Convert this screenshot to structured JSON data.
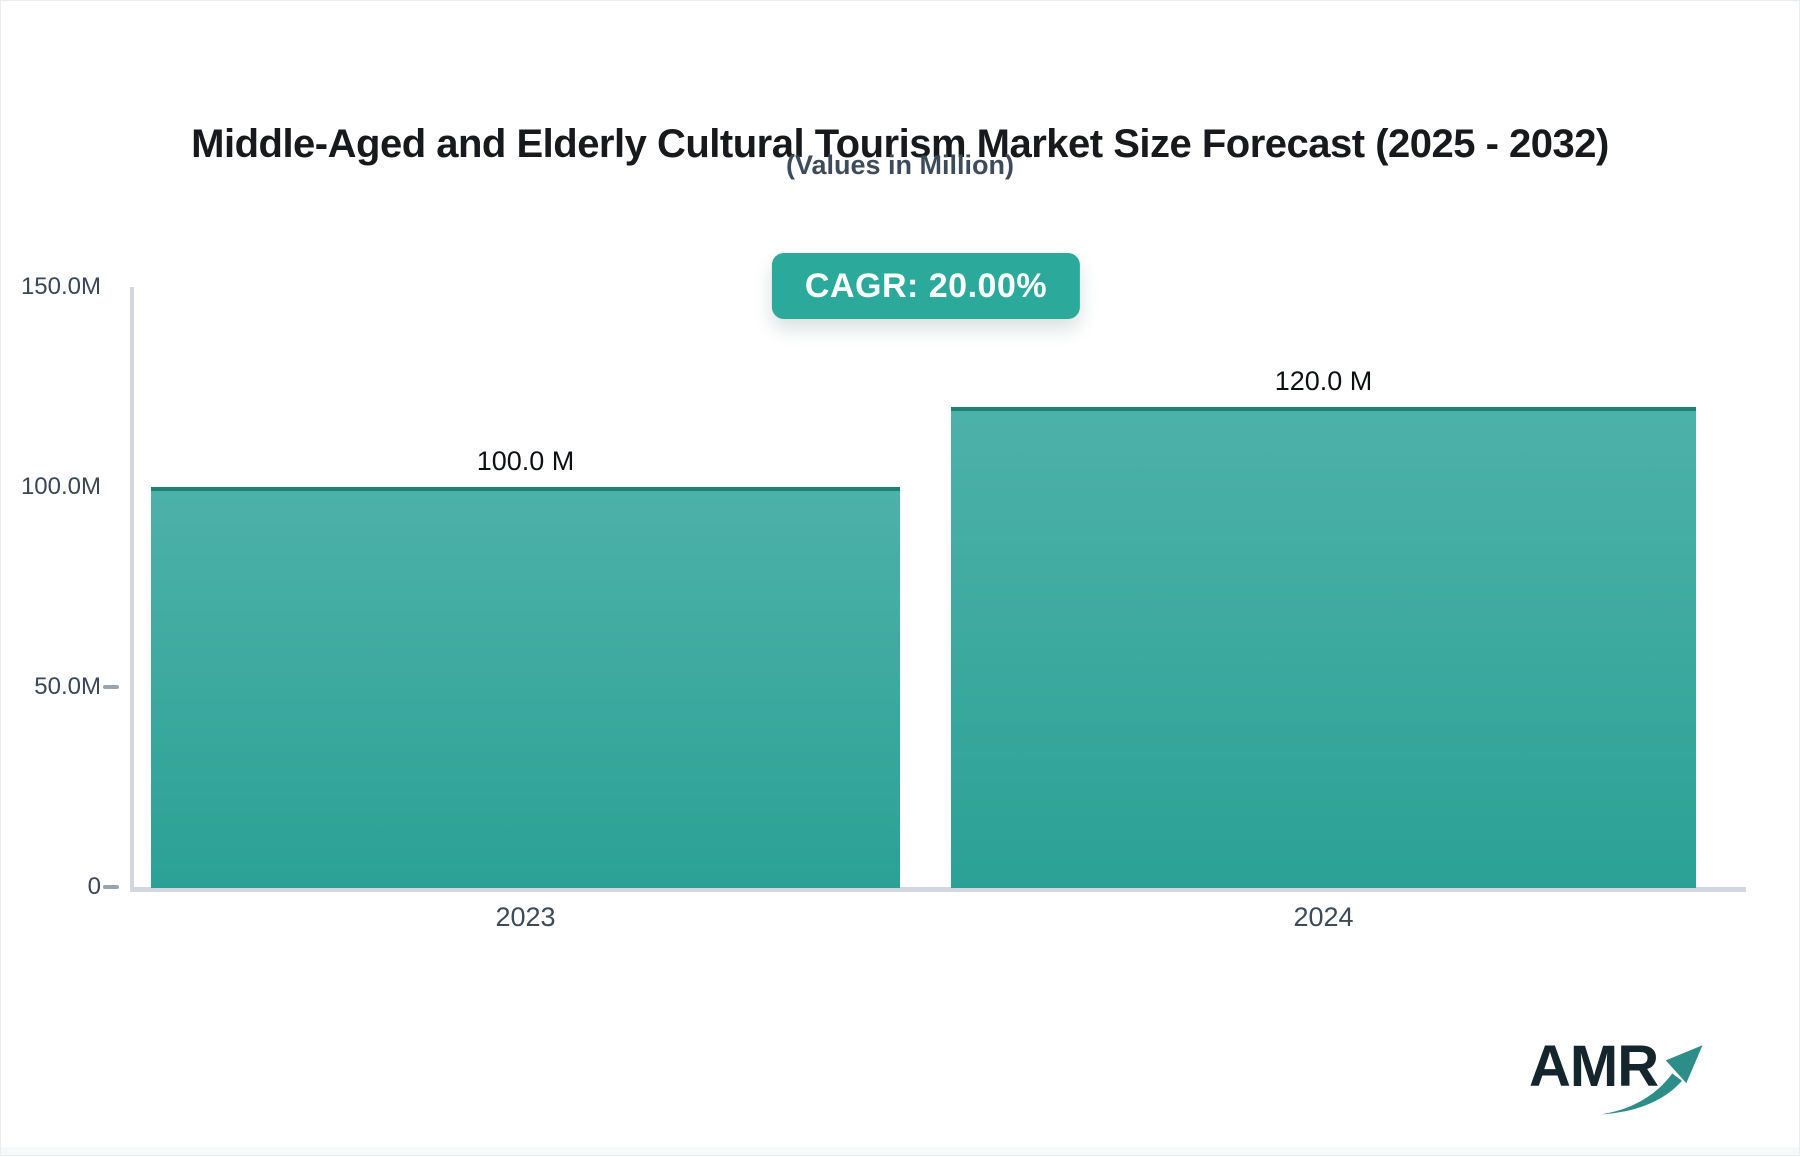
{
  "header": {
    "title": "Middle-Aged and Elderly Cultural Tourism Market Size Forecast (2025 - 2032)",
    "subtitle": "(Values in Million)",
    "cagr_label": "CAGR: 20.00%"
  },
  "chart_data": {
    "type": "bar",
    "title": "Middle-Aged and Elderly Cultural Tourism Market Size Forecast (2025 - 2032)",
    "subtitle": "(Values in Million)",
    "unit": "Million",
    "cagr_percent": "20.00%",
    "categories": [
      "2023",
      "2024"
    ],
    "values": [
      100.0,
      120.0
    ],
    "bar_labels": [
      "100.0 M",
      "120.0 M"
    ],
    "xlabel": "",
    "ylabel": "",
    "ylim": [
      0,
      150
    ],
    "yticks": [
      {
        "value": 0,
        "label": "0",
        "dash": true
      },
      {
        "value": 50,
        "label": "50.0M",
        "dash": true
      },
      {
        "value": 100,
        "label": "100.0M",
        "dash": false
      },
      {
        "value": 150,
        "label": "150.0M",
        "dash": false
      }
    ],
    "grid": false,
    "legend": false,
    "bar_color_top": "#4db1a9",
    "bar_color_bottom": "#2ba195",
    "bar_border_color": "#1e8177"
  },
  "branding": {
    "logo_text": "AMR"
  },
  "colors": {
    "accent_teal": "#2ba99b",
    "axis_gray": "#d2d7df",
    "tick_text": "#3b4754",
    "title_text": "#17191c",
    "logo_text": "#14262b",
    "logo_arrow": "#2d8d89"
  }
}
